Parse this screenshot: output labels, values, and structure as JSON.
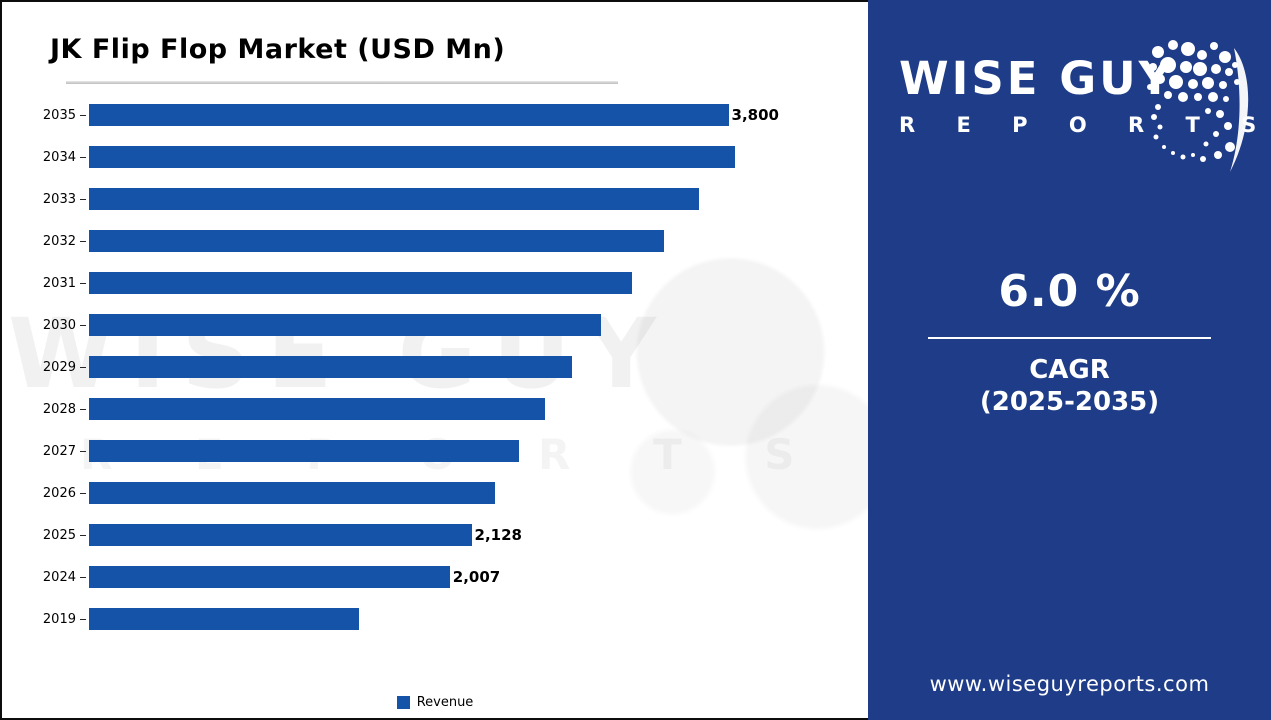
{
  "title": "JK Flip Flop Market (USD Mn)",
  "legend": {
    "label": "Revenue"
  },
  "watermark": {
    "line1": "WISE GUY",
    "line2": "R E P O R T S"
  },
  "sidebar": {
    "logo": {
      "line1": "WISE GUY",
      "line2": "R E P O R T S"
    },
    "cagr_value": "6.0 %",
    "cagr_label_1": "CAGR",
    "cagr_label_2": "(2025-2035)",
    "website": "www.wiseguyreports.com",
    "colors": {
      "background": "#1e3c87",
      "text": "#ffffff"
    }
  },
  "chart_data": {
    "type": "bar",
    "orientation": "horizontal",
    "title": "JK Flip Flop Market (USD Mn)",
    "categories": [
      "2035",
      "2034",
      "2033",
      "2032",
      "2031",
      "2030",
      "2029",
      "2028",
      "2027",
      "2026",
      "2025",
      "2024",
      "2019"
    ],
    "values": [
      3800,
      3596,
      3392,
      3200,
      3019,
      2848,
      2687,
      2535,
      2391,
      2256,
      2128,
      2007,
      1500
    ],
    "data_labels": {
      "2035": "3,800",
      "2025": "2,128",
      "2024": "2,007"
    },
    "xlabel": "",
    "ylabel": "",
    "xlim": [
      0,
      3800
    ],
    "grid": false,
    "legend": [
      "Revenue"
    ],
    "legend_position": "bottom-center",
    "bar_color": "#1553a8"
  }
}
